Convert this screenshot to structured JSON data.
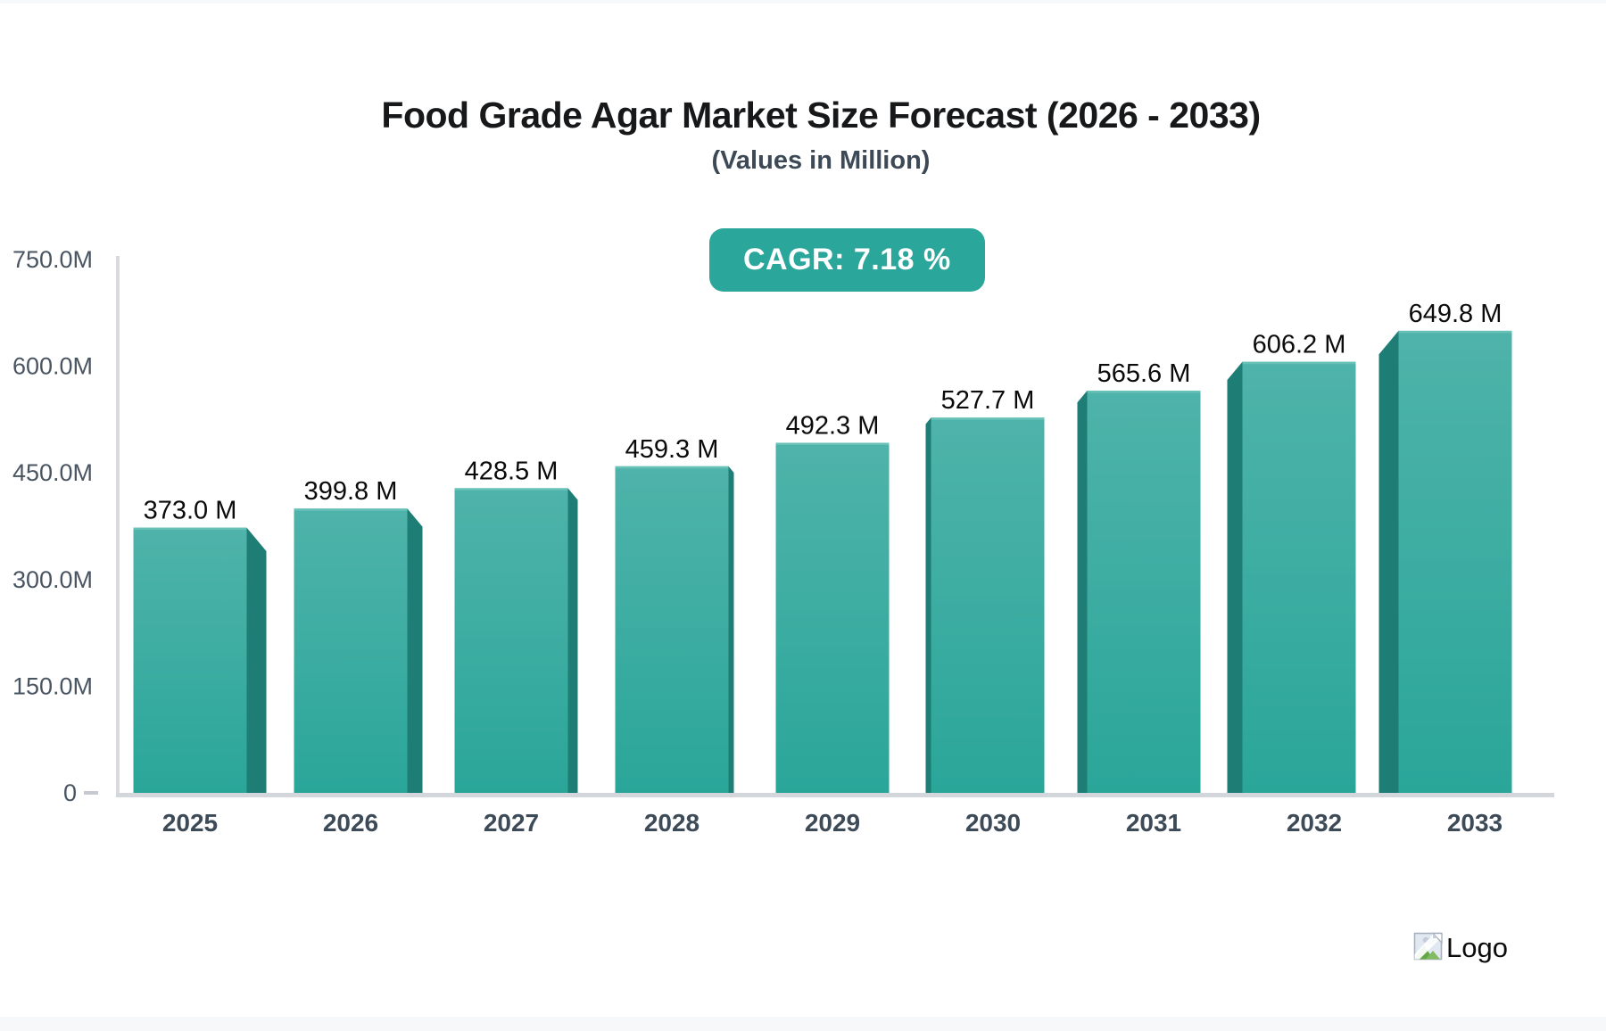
{
  "page": {
    "background": "#f7f8f9",
    "card_background": "#ffffff"
  },
  "header": {
    "title": "Food Grade Agar Market Size Forecast (2026 - 2033)",
    "subtitle": "(Values in Million)",
    "cagr_label": "CAGR: 7.18 %",
    "cagr_badge_color": "#2aa69b"
  },
  "chart_data": {
    "type": "bar",
    "title": "Food Grade Agar Market Size Forecast (2026 - 2033)",
    "subtitle": "(Values in Million)",
    "cagr_percent": 7.18,
    "unit": "Million",
    "categories": [
      "2025",
      "2026",
      "2027",
      "2028",
      "2029",
      "2030",
      "2031",
      "2032",
      "2033"
    ],
    "values": [
      373.0,
      399.8,
      428.5,
      459.3,
      492.3,
      527.7,
      565.6,
      606.2,
      649.8
    ],
    "value_labels": [
      "373.0 M",
      "399.8 M",
      "428.5 M",
      "459.3 M",
      "492.3 M",
      "527.7 M",
      "565.6 M",
      "606.2 M",
      "649.8 M"
    ],
    "ylim": [
      0,
      750
    ],
    "ytick_values": [
      0,
      150,
      300,
      450,
      600,
      750
    ],
    "ytick_labels": [
      "0",
      "150.0M",
      "300.0M",
      "450.0M",
      "600.0M",
      "750.0M"
    ],
    "grid": "off",
    "legend": "none",
    "bar_color_top": "#4fb3aa",
    "bar_color_bottom": "#2aa699",
    "bar_side_color": "#1e7d75",
    "axis_line_color": "#d8dade",
    "baseline_color": "#d3d6db",
    "tick_label_color": "#4a5562",
    "category_label_color": "#3d4a57",
    "value_label_color": "#0b0b0b"
  },
  "footer": {
    "logo_alt": "Logo"
  }
}
